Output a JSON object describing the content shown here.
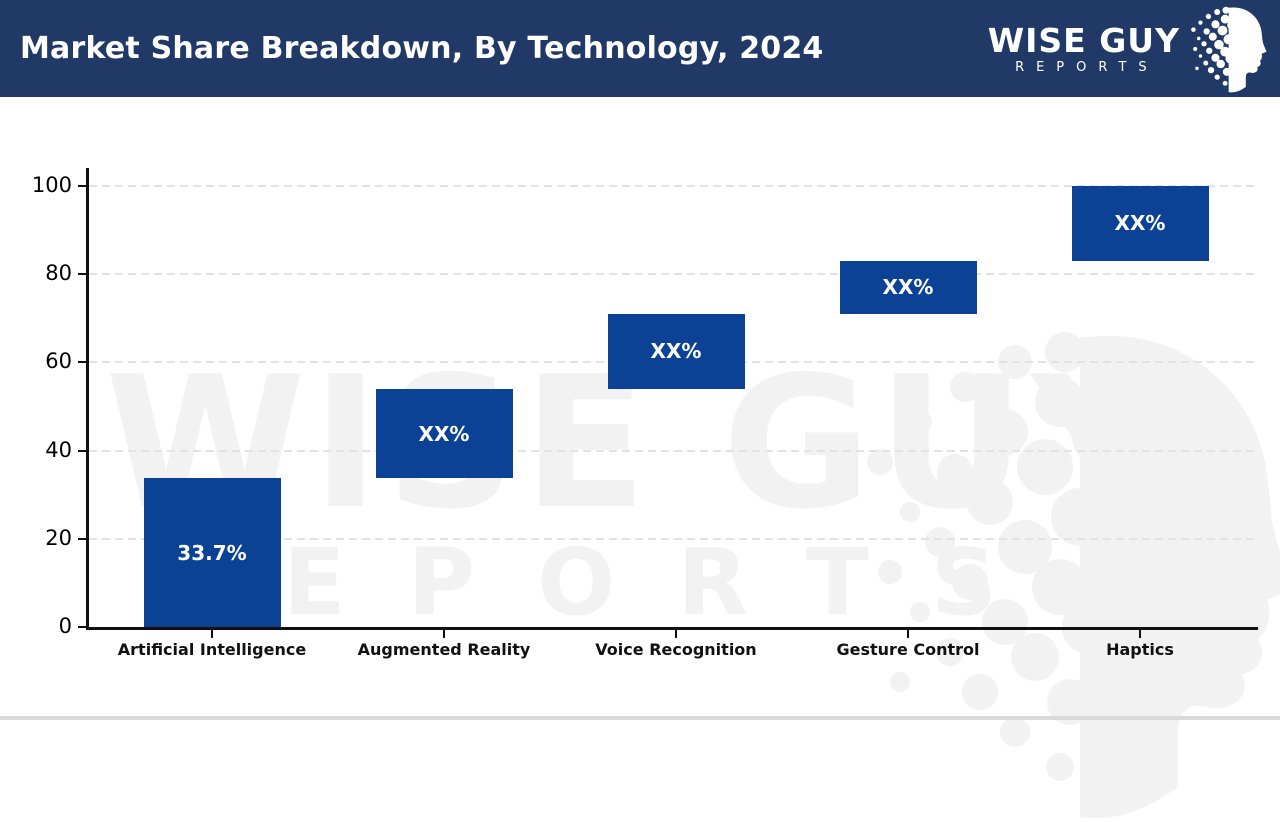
{
  "header": {
    "title": "Market Share Breakdown, By Technology, 2024",
    "logo": {
      "wordmark": "WISE GUY",
      "subtext": "REPORTS"
    }
  },
  "watermark": {
    "wordmark": "WISE GUY",
    "subtext": "REPORTS"
  },
  "chart_data": {
    "type": "bar",
    "subtype": "floating-waterfall",
    "title": "Market Share Breakdown, By Technology, 2024",
    "categories": [
      "Artificial Intelligence",
      "Augmented Reality",
      "Voice Recognition",
      "Gesture Control",
      "Haptics"
    ],
    "bars": [
      {
        "category": "Artificial Intelligence",
        "start": 0,
        "end": 33.7,
        "label": "33.7%"
      },
      {
        "category": "Augmented Reality",
        "start": 33.7,
        "end": 54,
        "label": "XX%"
      },
      {
        "category": "Voice Recognition",
        "start": 54,
        "end": 71,
        "label": "XX%"
      },
      {
        "category": "Gesture Control",
        "start": 71,
        "end": 83,
        "label": "XX%"
      },
      {
        "category": "Haptics",
        "start": 83,
        "end": 100,
        "label": "XX%"
      }
    ],
    "xlabel": "",
    "ylabel": "",
    "yticks": [
      0,
      20,
      40,
      60,
      80,
      100
    ],
    "ylim": [
      0,
      105
    ],
    "grid": "horizontal-dashed",
    "legend": "none",
    "bar_color": "#0b4295",
    "bar_label_color": "#ffffff",
    "header_color": "#213966",
    "watermark_color": "#f2f2f2"
  }
}
